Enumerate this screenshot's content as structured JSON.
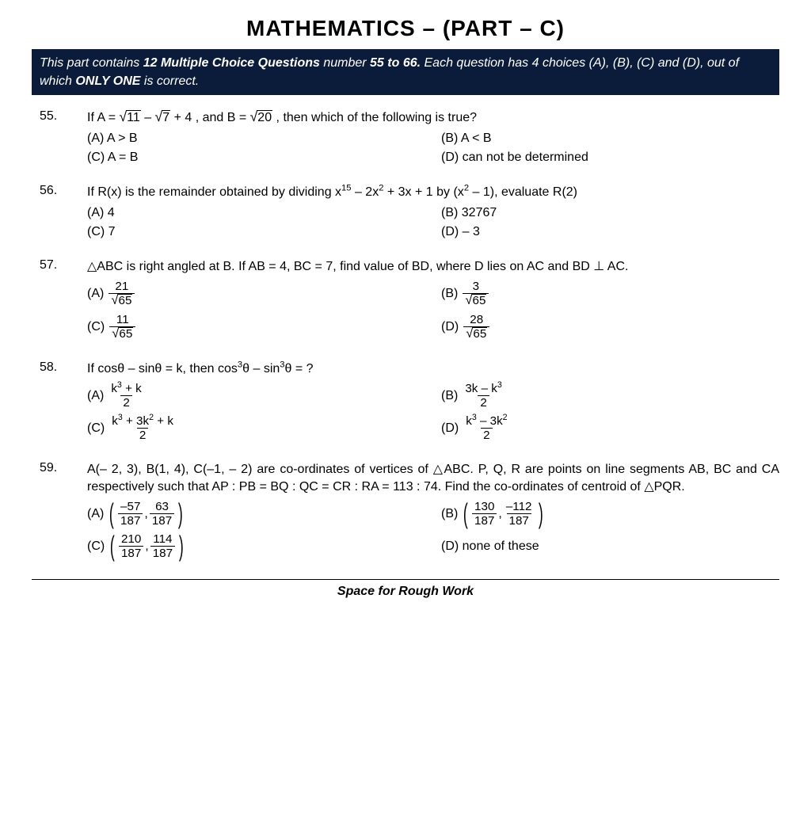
{
  "title": "MATHEMATICS – (PART – C)",
  "banner": {
    "pre": "This part contains ",
    "b1": "12 Multiple Choice Questions",
    "mid1": " number ",
    "b2": "55 to 66.",
    "mid2": " Each question has 4 choices (A), (B), (C) and (D), out of which ",
    "b3": "ONLY ONE",
    "post": " is correct."
  },
  "q55": {
    "num": "55.",
    "s1": "If A = ",
    "s2": " + 4 , and B = ",
    "s3": " , then which of the following is true?",
    "sqrt11": "11",
    "minus": " – ",
    "sqrt7": "7",
    "sqrt20": "20",
    "A": "(A) A > B",
    "B": "(B) A < B",
    "C": "(C) A = B",
    "D": "(D) can not be determined"
  },
  "q56": {
    "num": "56.",
    "s1": "If R(x) is the remainder obtained by dividing x",
    "e1": "15",
    "s2": " – 2x",
    "e2": "2",
    "s3": " + 3x + 1 by (x",
    "e3": "2",
    "s4": " – 1), evaluate R(2)",
    "A": "(A) 4",
    "B": "(B) 32767",
    "C": "(C) 7",
    "D": "(D) – 3"
  },
  "q57": {
    "num": "57.",
    "stem": "△ABC is right angled at B. If AB = 4, BC = 7, find value of BD, where D lies on AC and BD ⊥ AC.",
    "A_num": "21",
    "A_den": "65",
    "B_num": "3",
    "B_den": "65",
    "C_num": "11",
    "C_den": "65",
    "D_num": "28",
    "D_den": "65",
    "LA": "(A)",
    "LB": "(B)",
    "LC": "(C)",
    "LD": "(D)"
  },
  "q58": {
    "num": "58.",
    "s1": "If cosθ – sinθ = k, then cos",
    "e1": "3",
    "s2": "θ – sin",
    "e2": "3",
    "s3": "θ = ?",
    "LA": "(A)",
    "LB": "(B)",
    "LC": "(C)",
    "LD": "(D)",
    "A_top_a": "k",
    "A_top_e": "3",
    "A_top_b": " + k",
    "A_bot": "2",
    "B_top_a": "3k – k",
    "B_top_e": "3",
    "B_bot": "2",
    "C_top_a": "k",
    "C_top_e1": "3",
    "C_top_b": " + 3k",
    "C_top_e2": "2",
    "C_top_c": " + k",
    "C_bot": "2",
    "D_top_a": "k",
    "D_top_e1": "3",
    "D_top_b": " – 3k",
    "D_top_e2": "2",
    "D_bot": "2"
  },
  "q59": {
    "num": "59.",
    "stem": "A(– 2, 3), B(1, 4), C(–1, – 2) are co-ordinates of vertices of △ABC. P, Q, R are points on line segments AB, BC and CA respectively such that AP : PB = BQ : QC = CR : RA = 113 : 74. Find the co-ordinates of centroid of △PQR.",
    "LA": "(A)",
    "LB": "(B)",
    "LC": "(C)",
    "LD": "(D) none of these",
    "comma": ",",
    "A1n": "–57",
    "A1d": "187",
    "A2n": "63",
    "A2d": "187",
    "B1n": "130",
    "B1d": "187",
    "B2n": "–112",
    "B2d": "187",
    "C1n": "210",
    "C1d": "187",
    "C2n": "114",
    "C2d": "187"
  },
  "rough": "Space for Rough Work"
}
